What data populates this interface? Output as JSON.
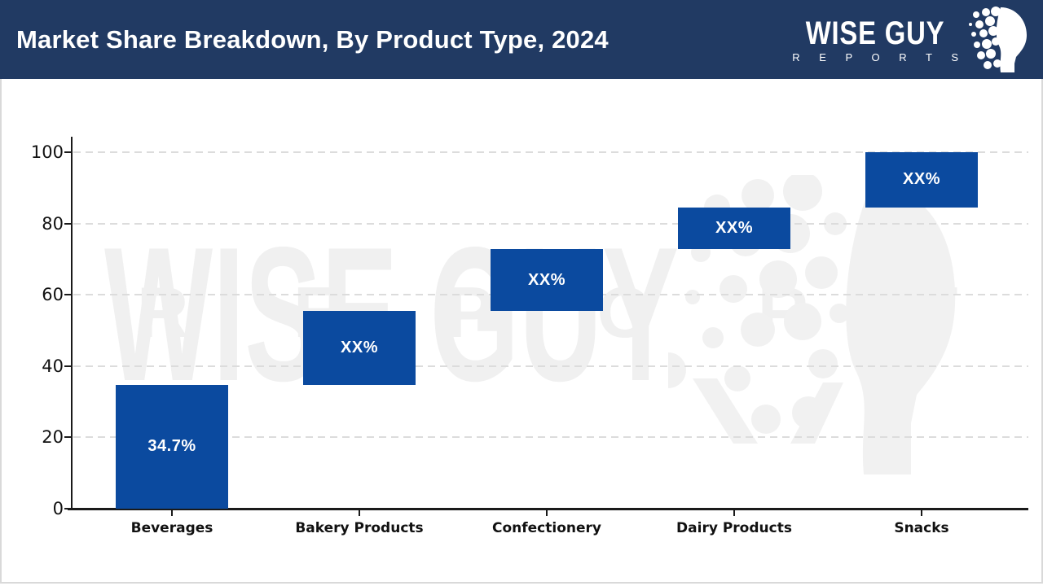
{
  "header": {
    "title": "Market Share Breakdown, By Product Type, 2024",
    "bg_color": "#213a63",
    "logo": {
      "line1": "WISE GUY",
      "line2": "R E P O R T S"
    }
  },
  "watermark": {
    "line1": "WISE GUY",
    "line2": "R E P O R T S"
  },
  "chart_data": {
    "type": "bar",
    "subtype": "waterfall",
    "title": "Market Share Breakdown, By Product Type, 2024",
    "xlabel": "",
    "ylabel": "",
    "ylim": [
      0,
      100
    ],
    "yticks": [
      0,
      20,
      40,
      60,
      80,
      100
    ],
    "grid": "horizontal-dashed",
    "bar_color": "#0b4a9f",
    "label_color": "#ffffff",
    "categories": [
      "Beverages",
      "Bakery Products",
      "Confectionery",
      "Dairy Products",
      "Snacks"
    ],
    "segments": [
      {
        "category": "Beverages",
        "start": 0,
        "end": 34.7,
        "label": "34.7%"
      },
      {
        "category": "Bakery Products",
        "start": 34.7,
        "end": 55.5,
        "label": "XX%"
      },
      {
        "category": "Confectionery",
        "start": 55.5,
        "end": 72.8,
        "label": "XX%"
      },
      {
        "category": "Dairy Products",
        "start": 72.8,
        "end": 84.5,
        "label": "XX%"
      },
      {
        "category": "Snacks",
        "start": 84.5,
        "end": 100,
        "label": "XX%"
      }
    ]
  }
}
